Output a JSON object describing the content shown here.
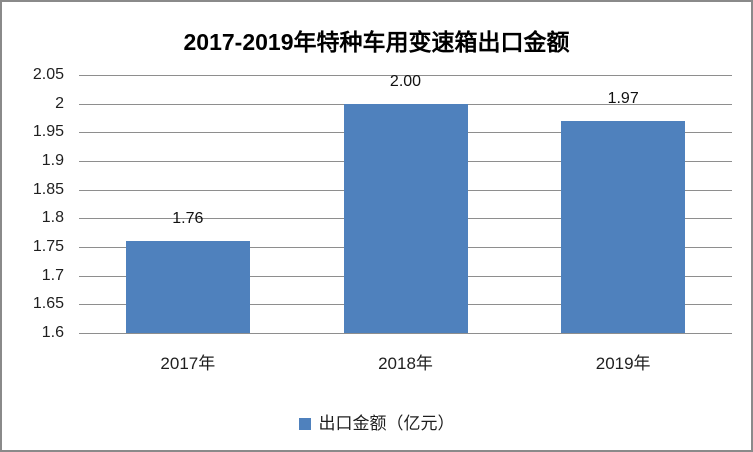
{
  "window": {
    "background": "#ffffff",
    "border_color": "#8a8a8a"
  },
  "chart_data": {
    "type": "bar",
    "title": "2017-2019年特种车用变速箱出口金额",
    "categories": [
      "2017年",
      "2018年",
      "2019年"
    ],
    "series": [
      {
        "name": "出口金额（亿元）",
        "values": [
          1.76,
          2.0,
          1.97
        ]
      }
    ],
    "data_labels": [
      "1.76",
      "2.00",
      "1.97"
    ],
    "ylim": [
      1.6,
      2.05
    ],
    "ytick_step": 0.05,
    "yticks": [
      "2.05",
      "2",
      "1.95",
      "1.9",
      "1.85",
      "1.8",
      "1.75",
      "1.7",
      "1.65",
      "1.6"
    ],
    "grid": true,
    "legend_position": "bottom",
    "bar_color": "#4F81BD",
    "gridline_color": "#8e8e8e"
  },
  "legend": {
    "label": "出口金额（亿元）",
    "marker_color": "#4F81BD"
  }
}
